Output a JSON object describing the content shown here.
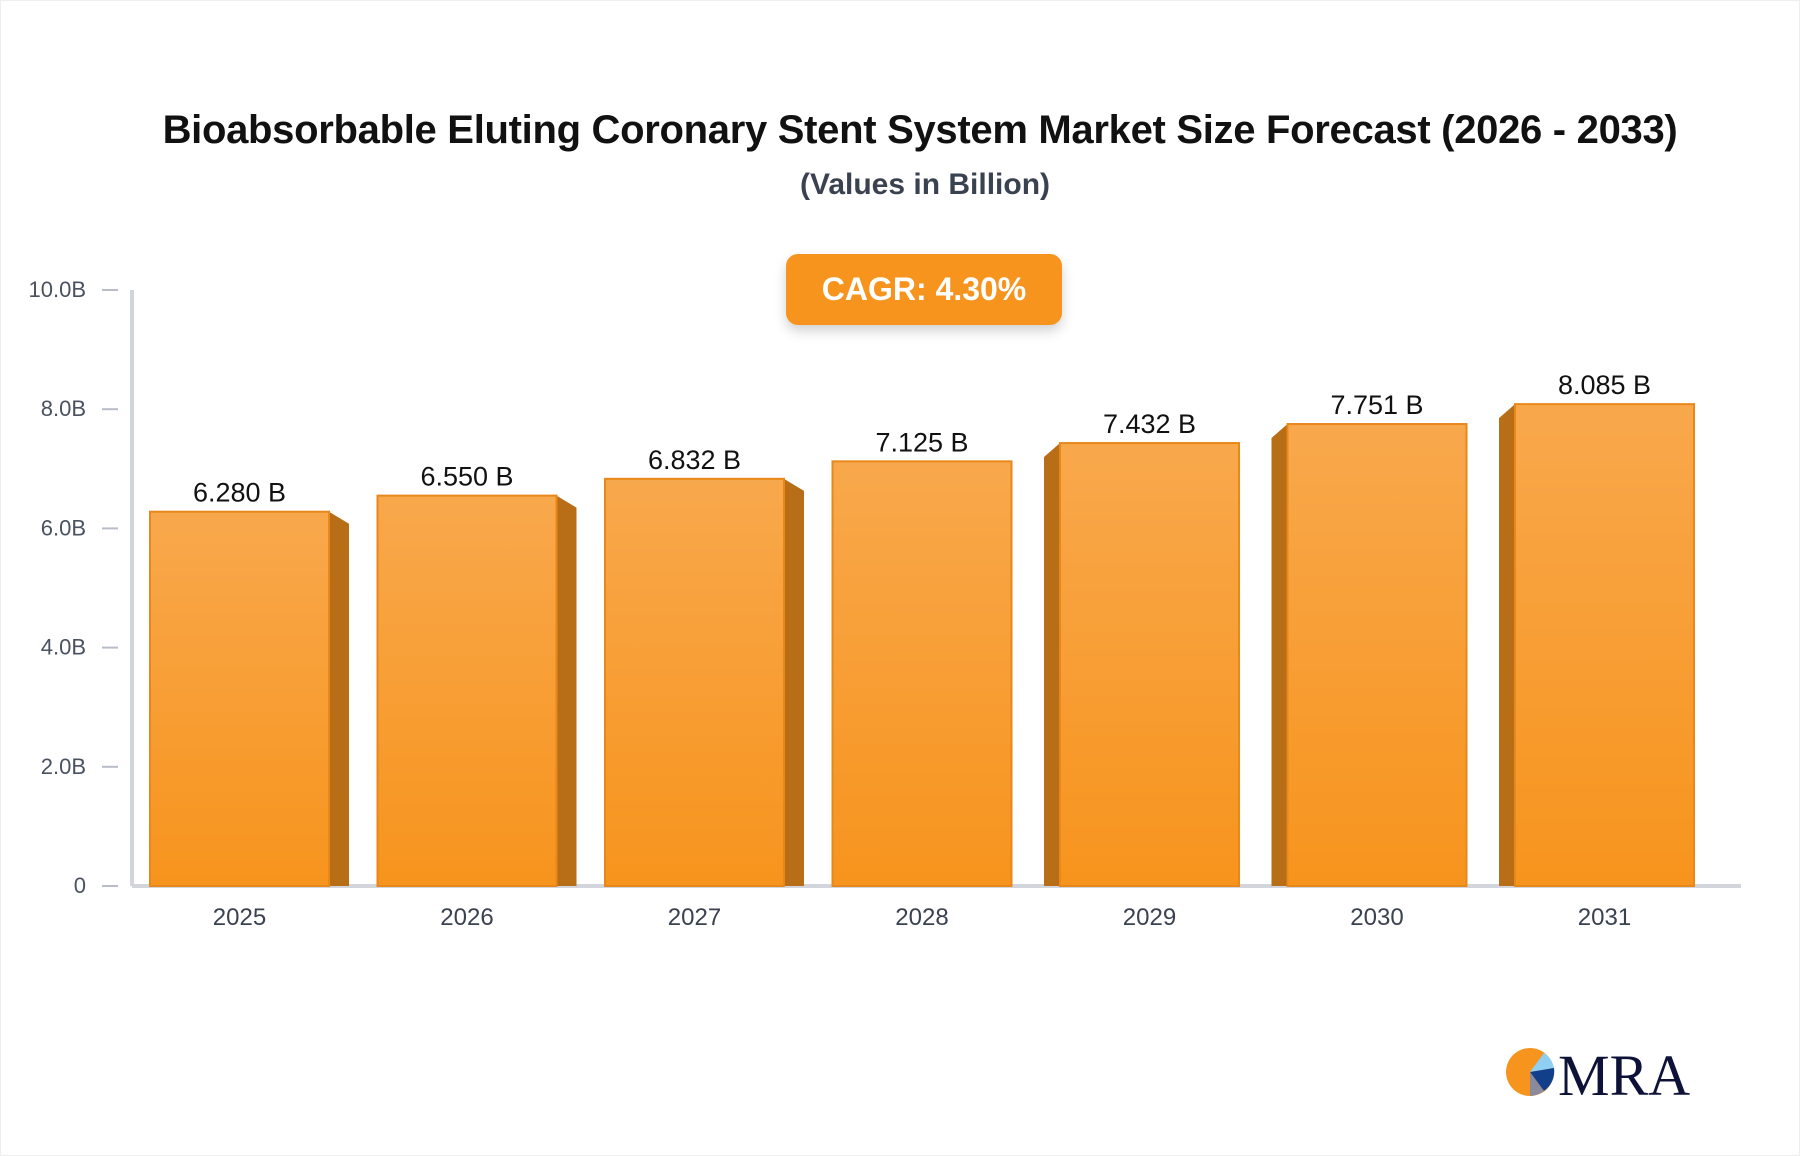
{
  "chart_data": {
    "type": "bar",
    "title": "Bioabsorbable Eluting Coronary Stent System Market Size Forecast (2026 - 2033)",
    "subtitle": "(Values in Billion)",
    "annotation": "CAGR: 4.30%",
    "categories": [
      "2025",
      "2026",
      "2027",
      "2028",
      "2029",
      "2030",
      "2031"
    ],
    "values": [
      6.28,
      6.55,
      6.832,
      7.125,
      7.432,
      7.751,
      8.085
    ],
    "data_labels": [
      "6.280 B",
      "6.550 B",
      "6.832 B",
      "7.125 B",
      "7.432 B",
      "7.751 B",
      "8.085 B"
    ],
    "y_ticks": [
      0,
      2,
      4,
      6,
      8,
      10
    ],
    "y_tick_labels": [
      "0",
      "2.0B",
      "4.0B",
      "6.0B",
      "8.0B",
      "10.0B"
    ],
    "ylim": [
      0,
      10
    ],
    "grid": false,
    "colors": {
      "bar": "#f7941d",
      "bar_light": "#f8a84c",
      "bar_side": "#b86d17",
      "axis": "#d3d5dc"
    }
  },
  "logo": {
    "text": "MRA"
  }
}
